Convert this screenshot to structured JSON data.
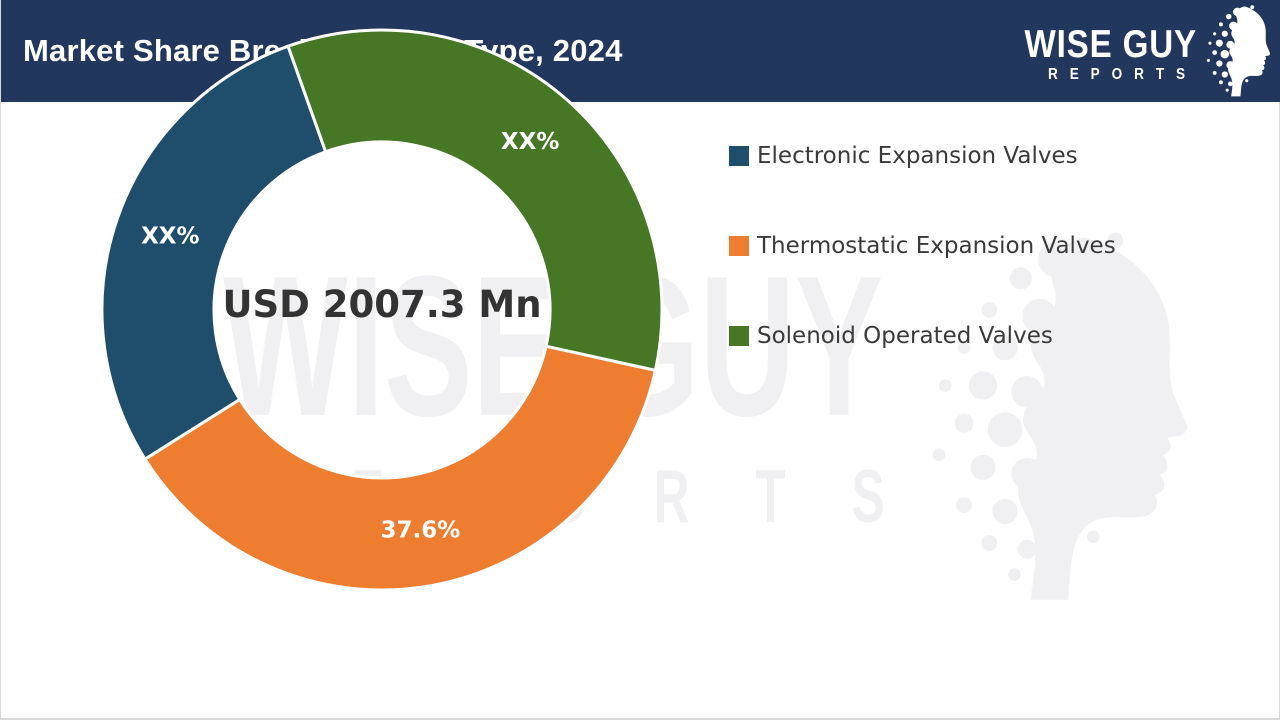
{
  "header": {
    "title": "Market Share Breakdown, By Type, 2024",
    "logo": {
      "wordmark": "WISE GUY",
      "subtitle": "REPORTS"
    }
  },
  "watermark": {
    "wordmark": "WISE GUY",
    "subtitle": "REPORTS"
  },
  "chart_data": {
    "type": "donut",
    "title": "Market Share Breakdown, By Type, 2024",
    "center_label": "USD 2007.3 Mn",
    "start_angle_deg": 340.4,
    "direction": "counterclockwise",
    "donut_hole_ratio": 0.6,
    "legend_position": "right",
    "series": [
      {
        "name": "Electronic Expansion Valves",
        "value_pct": 28.5,
        "display_label": "XX%",
        "color": "#1F4E6D"
      },
      {
        "name": "Thermostatic Expansion Valves",
        "value_pct": 37.6,
        "display_label": "37.6%",
        "color": "#EE7D30"
      },
      {
        "name": "Solenoid Operated Valves",
        "value_pct": 33.9,
        "display_label": "XX%",
        "color": "#457725"
      }
    ]
  },
  "colors": {
    "header_bg": "#22375E",
    "center_text": "#333333",
    "legend_text": "#3A3A3A",
    "slice_label_text": "#FFFFFF",
    "watermark": "#F0F0F2",
    "border": "#D9D9D9"
  }
}
